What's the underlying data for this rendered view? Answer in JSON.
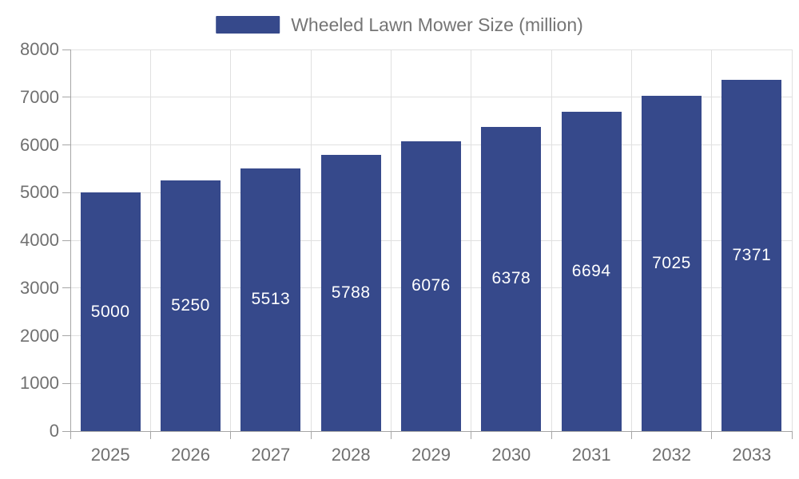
{
  "colors": {
    "bar": "#36498b",
    "bar_label": "#ffffff",
    "axis_text": "#707070",
    "legend_text": "#757575",
    "grid_line": "#e0e0e0",
    "axis_line": "#a6a6a6",
    "background": "#ffffff"
  },
  "chart_data": {
    "type": "bar",
    "title": "",
    "legend": "Wheeled Lawn Mower Size (million)",
    "legend_position": "top",
    "categories": [
      "2025",
      "2026",
      "2027",
      "2028",
      "2029",
      "2030",
      "2031",
      "2032",
      "2033"
    ],
    "values": [
      5000,
      5250,
      5513,
      5788,
      6076,
      6378,
      6694,
      7025,
      7371
    ],
    "xlabel": "",
    "ylabel": "",
    "ylim": [
      0,
      8000
    ],
    "yticks": [
      0,
      1000,
      2000,
      3000,
      4000,
      5000,
      6000,
      7000,
      8000
    ],
    "grid": true,
    "bar_labels_inside": true
  }
}
